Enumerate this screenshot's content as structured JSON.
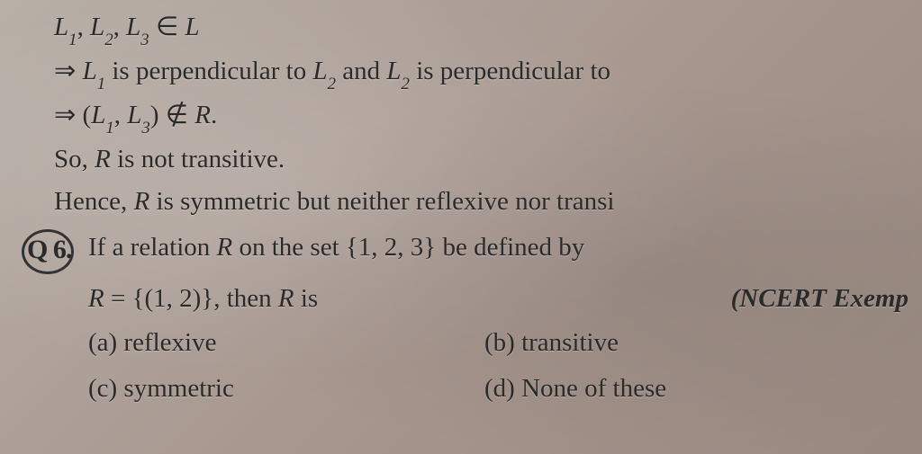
{
  "colors": {
    "background_start": "#b8b0a8",
    "background_mid": "#a89890",
    "background_end": "#988880",
    "text": "#2a2a2a",
    "circle_border": "#333333"
  },
  "fontsize": {
    "body": 29,
    "badge": 30
  },
  "proof": {
    "line1_part1": "L",
    "line1_sub1": "1",
    "line1_comma1": ", ",
    "line1_part2": "L",
    "line1_sub2": "2",
    "line1_comma2": ", ",
    "line1_part3": "L",
    "line1_sub3": "3",
    "line1_in": " ∈ ",
    "line1_part4": "L",
    "line2_arrow": "⇒ ",
    "line2_part1": "L",
    "line2_sub1": "1",
    "line2_text1": " is perpendicular to ",
    "line2_part2": "L",
    "line2_sub2": "2",
    "line2_text2": " and ",
    "line2_part3": "L",
    "line2_sub3": "2",
    "line2_text3": " is perpendicular to",
    "line3_arrow": "⇒ (",
    "line3_part1": "L",
    "line3_sub1": "1",
    "line3_comma": ", ",
    "line3_part2": "L",
    "line3_sub2": "3",
    "line3_text": ") ∉ ",
    "line3_part3": "R",
    "line3_dot": ".",
    "line4_text1": "So, ",
    "line4_R": "R",
    "line4_text2": " is not transitive.",
    "line5_text1": "Hence, ",
    "line5_R": "R",
    "line5_text2": " is symmetric but neither reflexive nor transi"
  },
  "question": {
    "badge": "Q 6.",
    "text1": "If a relation ",
    "R1": "R",
    "text2": " on the set {1, 2, 3} be defined by",
    "R2": "R",
    "text3": " = {(1, 2)}, then ",
    "R3": "R",
    "text4": " is",
    "source": "(NCERT Exemp",
    "options": {
      "a": "(a) reflexive",
      "b": "(b) transitive",
      "c": "(c) symmetric",
      "d": "(d) None of these"
    }
  }
}
